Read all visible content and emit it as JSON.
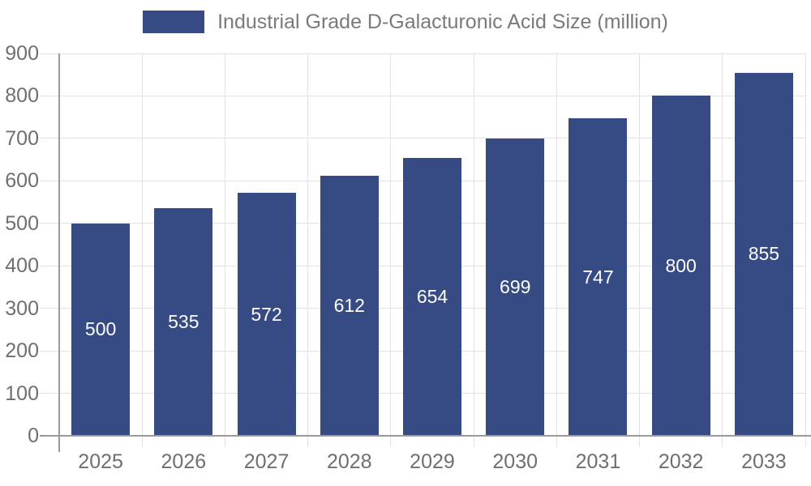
{
  "chart_data": {
    "type": "bar",
    "title": "Industrial Grade D-Galacturonic Acid Size (million)",
    "legend_label": "Industrial Grade D-Galacturonic Acid Size (million)",
    "legend_position": "top",
    "categories": [
      "2025",
      "2026",
      "2027",
      "2028",
      "2029",
      "2030",
      "2031",
      "2032",
      "2033"
    ],
    "values": [
      500,
      535,
      572,
      612,
      654,
      699,
      747,
      800,
      855
    ],
    "value_label_position": "inside-center",
    "xlabel": "",
    "ylabel": "",
    "ylim": [
      0,
      900
    ],
    "yticks": [
      0,
      100,
      200,
      300,
      400,
      500,
      600,
      700,
      800,
      900
    ],
    "grid": true,
    "colors": {
      "bar": "#364a84",
      "grid": "#e2e2e2",
      "axis": "#9a9a9a",
      "tick_text": "#6f6f6f",
      "legend_text": "#797a7e",
      "value_text": "#ffffff"
    }
  }
}
